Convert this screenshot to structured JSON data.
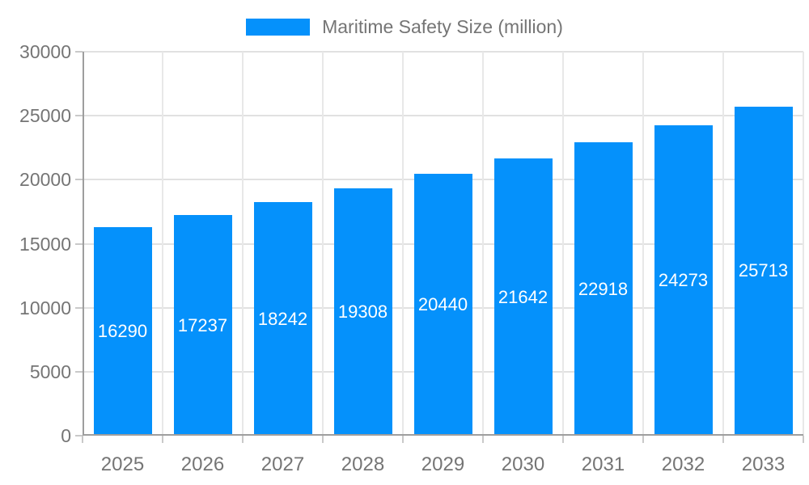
{
  "legend": {
    "label": "Maritime Safety Size (million)"
  },
  "colors": {
    "bar": "#0591fb",
    "axis_text": "#757575",
    "grid_horizontal": "#e1e1e1",
    "grid_vertical": "#e8e8e8",
    "axis_line": "#9e9e9e",
    "tick": "#c9c9c9",
    "value_label": "#ffffff",
    "background": "#ffffff"
  },
  "chart_data": {
    "type": "bar",
    "title": "Maritime Safety Size (million)",
    "categories": [
      "2025",
      "2026",
      "2027",
      "2028",
      "2029",
      "2030",
      "2031",
      "2032",
      "2033"
    ],
    "values": [
      16290,
      17237,
      18242,
      19308,
      20440,
      21642,
      22918,
      24273,
      25713
    ],
    "xlabel": "",
    "ylabel": "",
    "ylim": [
      0,
      30000
    ],
    "yticks": [
      0,
      5000,
      10000,
      15000,
      20000,
      25000,
      30000
    ],
    "grid": true,
    "legend_position": "top-center",
    "value_labels": "inside-center-white"
  }
}
